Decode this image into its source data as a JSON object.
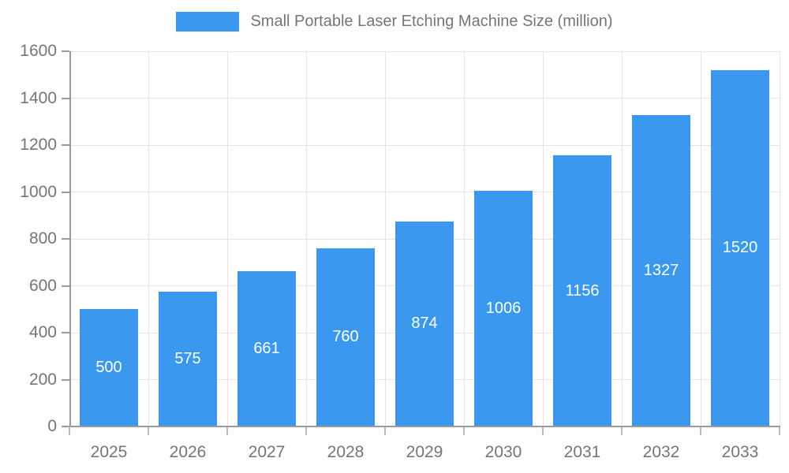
{
  "chart_data": {
    "type": "bar",
    "title": "",
    "legend": "Small Portable Laser Etching Machine Size (million)",
    "categories": [
      "2025",
      "2026",
      "2027",
      "2028",
      "2029",
      "2030",
      "2031",
      "2032",
      "2033"
    ],
    "values": [
      500,
      575,
      661,
      760,
      874,
      1006,
      1156,
      1327,
      1520
    ],
    "xlabel": "",
    "ylabel": "",
    "ylim": [
      0,
      1600
    ],
    "ytick_step": 200,
    "grid": true,
    "legend_position": "top-center",
    "bar_color": "#3a99ee",
    "bar_label_color": "#ffffff",
    "axis_text_color": "#757575",
    "grid_color": "#e5e5e5",
    "axis_line_color": "#9a9a9a",
    "background_color": "#ffffff"
  }
}
